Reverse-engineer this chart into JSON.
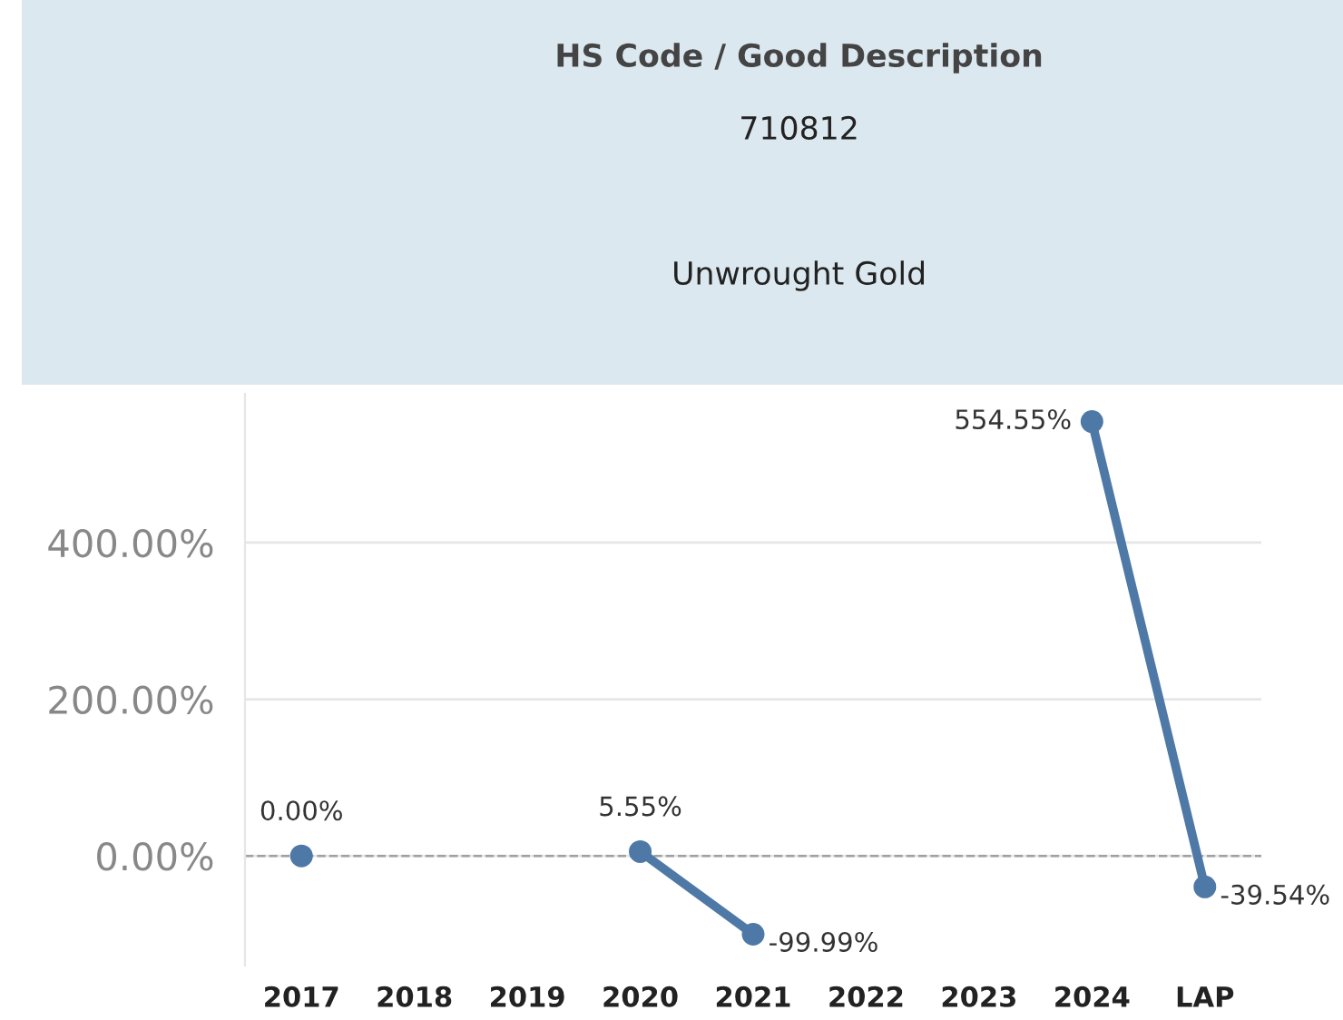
{
  "chart_data": {
    "type": "line",
    "title": "HS Code / Good Description",
    "subtitle": "710812",
    "annotations": [
      "Unwrought Gold"
    ],
    "categories": [
      "2017",
      "2018",
      "2019",
      "2020",
      "2021",
      "2022",
      "2023",
      "2024",
      "LAP"
    ],
    "series": [
      {
        "color": "#4e79a7",
        "values": [
          0.0,
          null,
          null,
          5.55,
          -99.99,
          null,
          null,
          554.55,
          -39.54
        ],
        "value_labels": [
          "0.00%",
          null,
          null,
          "5.55%",
          "-99.99%",
          null,
          null,
          "554.55%",
          "-39.54%"
        ]
      }
    ],
    "ylim": [
      -140,
      590
    ],
    "yticks": [
      {
        "value": 0,
        "label": "0.00%"
      },
      {
        "value": 200,
        "label": "200.00%"
      },
      {
        "value": 400,
        "label": "400.00%"
      }
    ],
    "ref_lines": [
      {
        "axis": "y",
        "value": 0,
        "color": "#a0a0a0",
        "line_style": "dashed"
      }
    ],
    "grid": "y",
    "marker": "circle",
    "line_style": "solid",
    "legend": false
  }
}
